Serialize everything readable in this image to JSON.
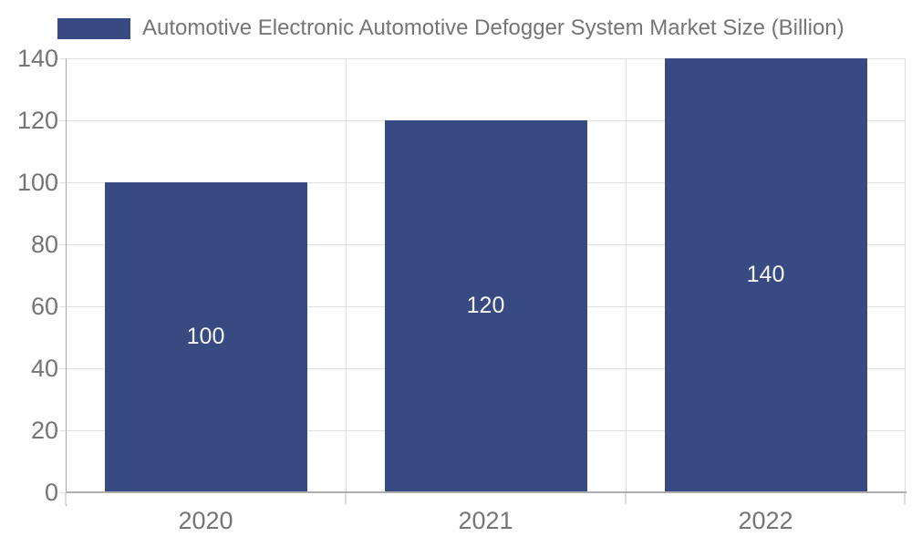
{
  "legend": {
    "label": "Automotive Electronic Automotive Defogger System Market Size (Billion)"
  },
  "colors": {
    "bar": "#384A82",
    "legend_text": "#757575",
    "tick_text": "#757575",
    "grid": "#e1e1e1",
    "spine": "#a8a8a8",
    "bar_label_text": "#f5f5f5"
  },
  "chart_data": {
    "type": "bar",
    "title": "",
    "categories": [
      "2020",
      "2021",
      "2022"
    ],
    "values": [
      100,
      120,
      140
    ],
    "bar_labels": [
      "100",
      "120",
      "140"
    ],
    "legend": [
      "Automotive Electronic Automotive Defogger System Market Size (Billion)"
    ],
    "legend_position": "top-left",
    "xlabel": "",
    "ylabel": "",
    "ylim": [
      0,
      140
    ],
    "yticks": [
      0,
      20,
      40,
      60,
      80,
      100,
      120,
      140
    ],
    "grid": true,
    "bar_color": "#384A82"
  }
}
